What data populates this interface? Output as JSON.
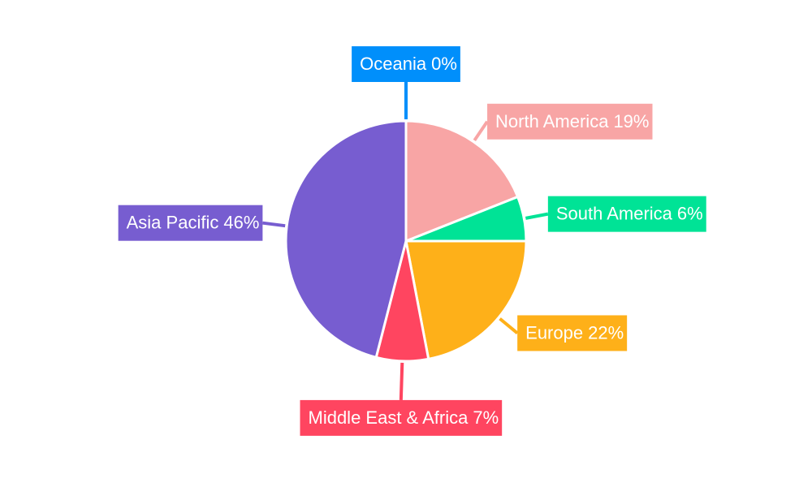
{
  "chart_data": {
    "type": "pie",
    "categories": [
      "North America",
      "South America",
      "Europe",
      "Middle East & Africa",
      "Asia Pacific",
      "Oceania"
    ],
    "values": [
      19,
      6,
      22,
      7,
      46,
      0
    ],
    "value_labels": [
      "19%",
      "6%",
      "22%",
      "7%",
      "46%",
      "0%"
    ],
    "colors": [
      "#f8a5a5",
      "#00e396",
      "#feb019",
      "#ff4560",
      "#775dd0",
      "#008ffb"
    ]
  }
}
